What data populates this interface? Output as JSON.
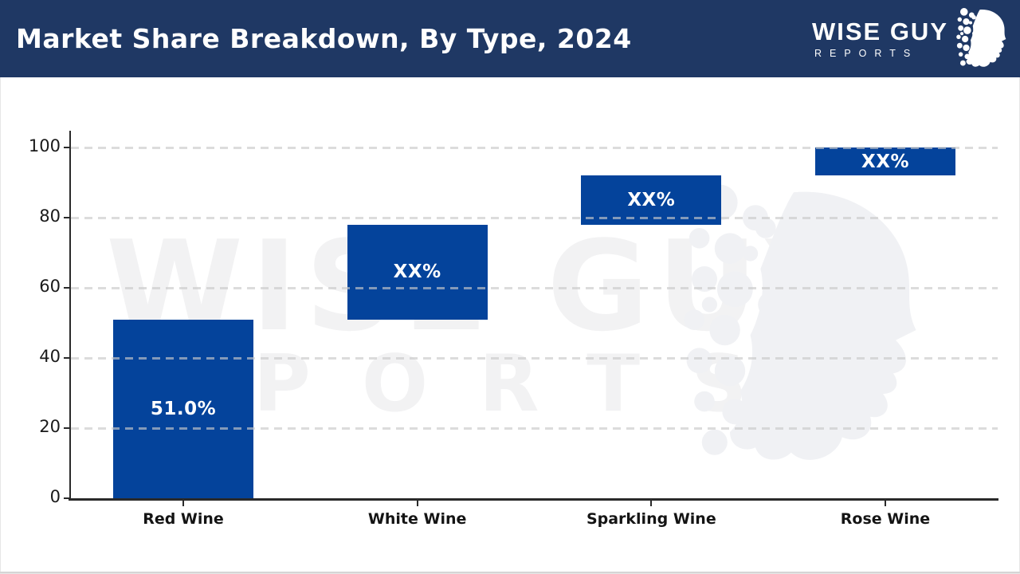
{
  "header": {
    "title": "Market Share Breakdown, By Type, 2024",
    "bg_color": "#1f3864",
    "brand": {
      "line1": "WISE GUY",
      "line2": "REPORTS"
    }
  },
  "watermark": {
    "line1": "WISE GUY",
    "line2": "PORTS"
  },
  "chart_data": {
    "type": "bar",
    "variant": "waterfall",
    "title": "Market Share Breakdown, By Type, 2024",
    "categories": [
      "Red Wine",
      "White Wine",
      "Sparkling Wine",
      "Rose Wine"
    ],
    "segments": [
      {
        "category": "Red Wine",
        "start": 0,
        "end": 51,
        "label": "51.0%"
      },
      {
        "category": "White Wine",
        "start": 51,
        "end": 78,
        "label": "XX%"
      },
      {
        "category": "Sparkling Wine",
        "start": 78,
        "end": 92,
        "label": "XX%"
      },
      {
        "category": "Rose Wine",
        "start": 92,
        "end": 100,
        "label": "XX%"
      }
    ],
    "yticks": [
      0,
      20,
      40,
      60,
      80,
      100
    ],
    "ylim": [
      0,
      105
    ],
    "xlabel": "",
    "ylabel": "",
    "grid": "horizontal-dashed",
    "legend": "none",
    "bar_color": "#04439b"
  }
}
